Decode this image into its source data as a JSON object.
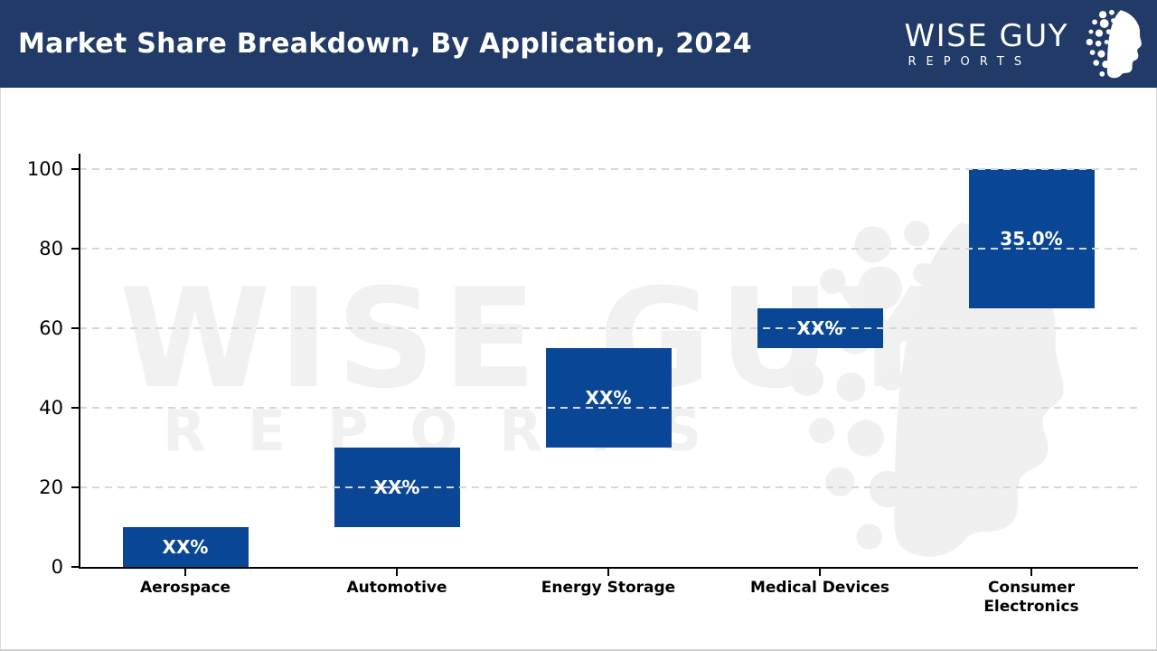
{
  "header": {
    "title": "Market Share Breakdown, By Application, 2024",
    "bg_color": "#213a67",
    "logo": {
      "line1": "WISE GUY",
      "line2": "REPORTS"
    }
  },
  "watermark": {
    "line1": "WISE GUY",
    "line2": "REPORTS"
  },
  "chart_data": {
    "type": "bar",
    "variant": "floating-waterfall",
    "title": "Market Share Breakdown, By Application, 2024",
    "categories": [
      "Aerospace",
      "Automotive",
      "Energy Storage",
      "Medical Devices",
      "Consumer Electronics"
    ],
    "series": [
      {
        "name": "Market share (%)",
        "segment_start": [
          0,
          10,
          30,
          55,
          65
        ],
        "segment_end": [
          10,
          30,
          55,
          65,
          100
        ],
        "values": [
          10,
          20,
          25,
          10,
          35
        ],
        "bar_labels": [
          "XX%",
          "XX%",
          "XX%",
          "XX%",
          "35.0%"
        ]
      }
    ],
    "xlabel": "",
    "ylabel": "",
    "yticks": [
      0,
      20,
      40,
      60,
      80,
      100
    ],
    "ylim": [
      0,
      104
    ],
    "grid": {
      "horizontal": true,
      "style": "dashed",
      "above_bars": true,
      "color": "#d7d7d7"
    },
    "bar_color": "#0a4696",
    "bar_label_color": "#ffffff",
    "axis_color": "#000000",
    "legend": null
  }
}
